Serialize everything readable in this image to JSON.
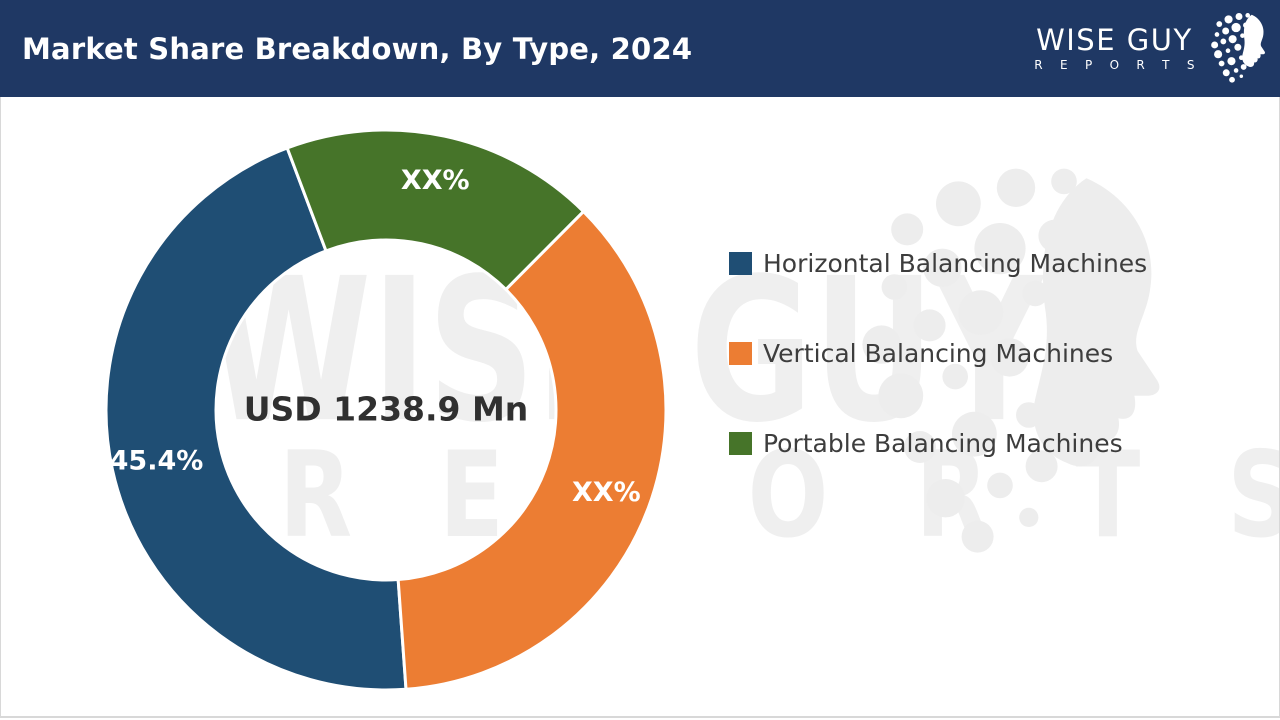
{
  "header": {
    "title": "Market Share Breakdown, By Type, 2024",
    "logo": {
      "line1": "WISE GUY",
      "line2": "REPORTS"
    }
  },
  "chart_data": {
    "type": "pie",
    "subtype": "donut",
    "title": "Market Share Breakdown, By Type, 2024",
    "center_label": "USD 1238.9 Mn",
    "start_angle_deg": 175.9,
    "slices": [
      {
        "label": "Horizontal Balancing Machines",
        "value": 45.4,
        "display_label": "45.4%",
        "color": "#1f4e74"
      },
      {
        "label": "Portable Balancing Machines",
        "value": 18.2,
        "display_label": "XX%",
        "color": "#467429"
      },
      {
        "label": "Vertical Balancing Machines",
        "value": 36.4,
        "display_label": "XX%",
        "color": "#ec7d33"
      }
    ],
    "legend_order": [
      0,
      2,
      1
    ],
    "legend_position": "right"
  },
  "watermark": {
    "line1": "WISE GUY",
    "line2": "REPORTS"
  },
  "colors": {
    "header_bg": "#1f3864",
    "canvas_bg": "#ffffff",
    "center_text": "#303030",
    "legend_text": "#3d3d3d",
    "slice_label_text": "#ffffff",
    "watermark": "#efefef",
    "border": "#d8d8d8"
  }
}
